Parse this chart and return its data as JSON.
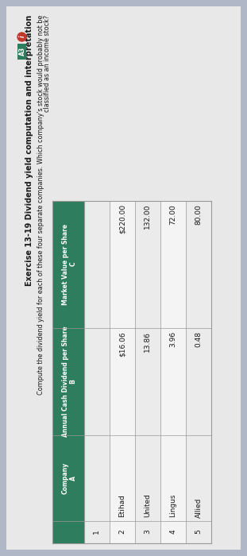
{
  "title_line1": "Exercise 13-19 Dividend yield computation and interpretation",
  "title_badge": "A3",
  "subtitle": "Compute the dividend yield for each of these four separate companies. Which company's stock would probably not be\nclassified as an income stock?",
  "col_headers": [
    "",
    "Company\nA",
    "Annual Cash Dividend per Share\nB",
    "Market Value per Share\nC"
  ],
  "rows": [
    [
      "1",
      "",
      "",
      ""
    ],
    [
      "2",
      "Etihad",
      "$16.06",
      "$220.00"
    ],
    [
      "3",
      "United",
      "13.86",
      "132.00"
    ],
    [
      "4",
      "Lingus",
      "3.96",
      "72.00"
    ],
    [
      "5",
      "Allied",
      "0.48",
      "80.00"
    ]
  ],
  "header_bg": "#2e7d5e",
  "header_text": "#ffffff",
  "row_bg_light": "#ebebeb",
  "row_bg_white": "#f7f7f7",
  "border_color": "#999999",
  "title_color": "#1a1a1a",
  "body_text_color": "#1a1a1a",
  "page_bg": "#b0b8c8",
  "content_bg": "#e8e8e8",
  "badge_bg": "#2e7d5e",
  "badge_text": "#ffffff",
  "info_icon_bg": "#c0392b",
  "info_icon_text": "#ffffff"
}
